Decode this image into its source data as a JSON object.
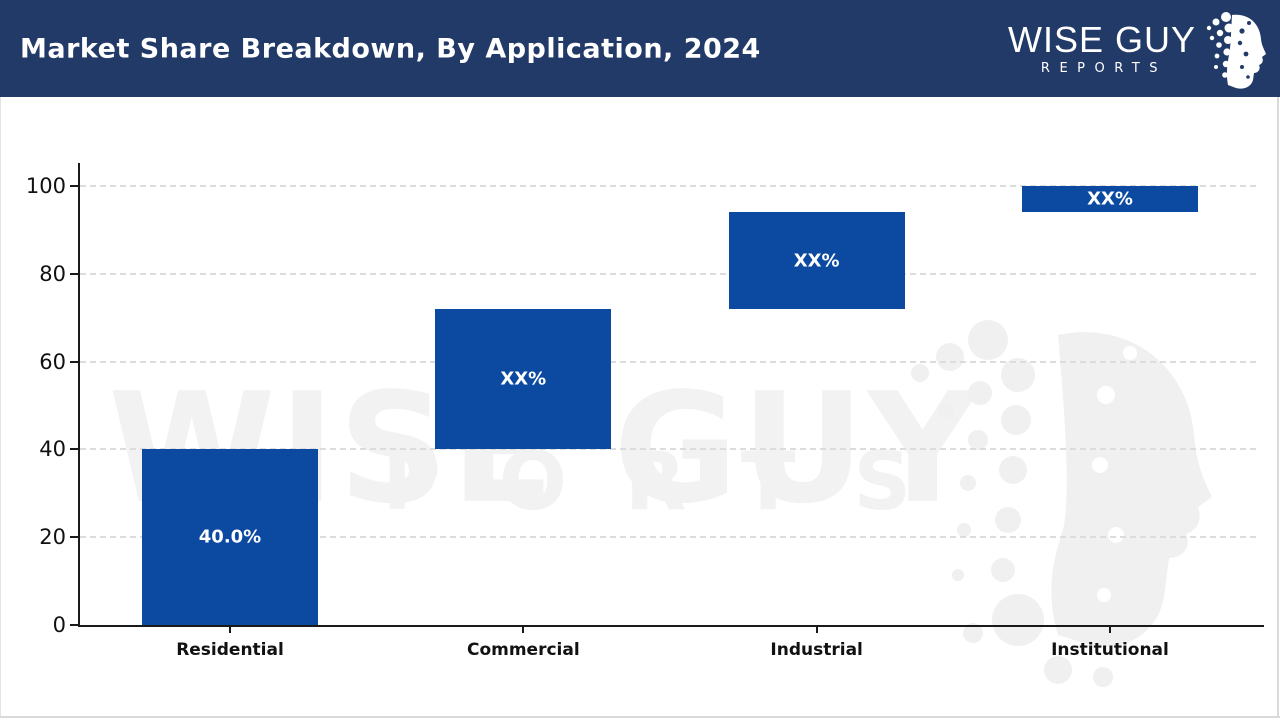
{
  "header": {
    "title": "Market Share Breakdown, By Application, 2024",
    "bg_color": "#223a67",
    "logo": {
      "line1": "WISE GUY",
      "line2": "REPORTS"
    }
  },
  "watermark": {
    "line1": "WISE GUY",
    "line2": "REPORTS"
  },
  "chart_data": {
    "type": "bar",
    "subtype": "waterfall-stacked-range",
    "title": "Market Share Breakdown, By Application, 2024",
    "categories": [
      "Residential",
      "Commercial",
      "Industrial",
      "Institutional"
    ],
    "segments": [
      {
        "category": "Residential",
        "start": 0,
        "end": 40,
        "label": "40.0%"
      },
      {
        "category": "Commercial",
        "start": 40,
        "end": 72,
        "label": "XX%"
      },
      {
        "category": "Industrial",
        "start": 72,
        "end": 94,
        "label": "XX%"
      },
      {
        "category": "Institutional",
        "start": 94,
        "end": 100,
        "label": "XX%"
      }
    ],
    "xlabel": "",
    "ylabel": "",
    "ylim": [
      0,
      100
    ],
    "yticks": [
      0,
      20,
      40,
      60,
      80,
      100
    ],
    "grid": "horizontal-dashed",
    "legend": "none",
    "bar_color": "#0b4aa0",
    "label_color": "#ffffff",
    "grid_color": "#dcdcdc",
    "axis_color": "#1a1a1a"
  }
}
